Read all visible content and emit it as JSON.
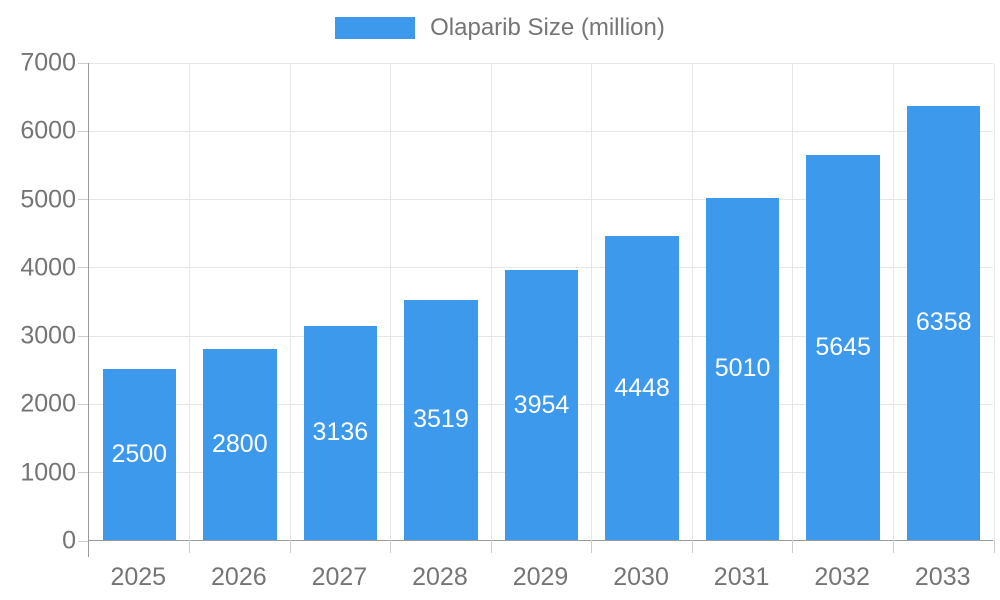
{
  "legend": {
    "label": "Olaparib Size (million)"
  },
  "colors": {
    "bar": "#3C99EC",
    "grid": "#e6e6e6",
    "axis": "#9a9a9a",
    "tick": "#cccccc",
    "axis_text": "#757575",
    "value_text": "#ffffff",
    "background": "#ffffff"
  },
  "chart_data": {
    "type": "bar",
    "title": "",
    "series_name": "Olaparib Size (million)",
    "categories": [
      "2025",
      "2026",
      "2027",
      "2028",
      "2029",
      "2030",
      "2031",
      "2032",
      "2033"
    ],
    "values": [
      2500,
      2800,
      3136,
      3519,
      3954,
      4448,
      5010,
      5645,
      6358
    ],
    "xlabel": "",
    "ylabel": "",
    "ylim": [
      0,
      7000
    ],
    "yticks": [
      0,
      1000,
      2000,
      3000,
      4000,
      5000,
      6000,
      7000
    ],
    "grid": true,
    "legend_position": "top",
    "value_label_position": "inside-center",
    "bar_width_fraction": 0.73
  }
}
